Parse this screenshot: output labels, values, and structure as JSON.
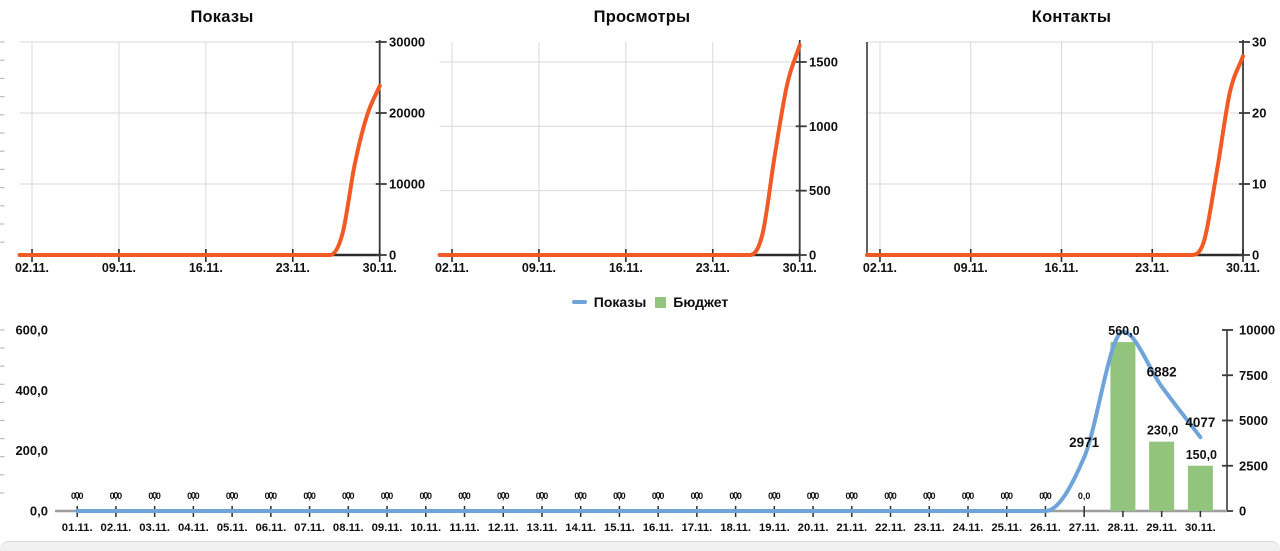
{
  "dates": [
    "01.11.",
    "02.11.",
    "03.11.",
    "04.11.",
    "05.11.",
    "06.11.",
    "07.11.",
    "08.11.",
    "09.11.",
    "10.11.",
    "11.11.",
    "12.11.",
    "13.11.",
    "14.11.",
    "15.11.",
    "16.11.",
    "17.11.",
    "18.11.",
    "19.11.",
    "20.11.",
    "21.11.",
    "22.11.",
    "23.11.",
    "24.11.",
    "25.11.",
    "26.11.",
    "27.11.",
    "28.11.",
    "29.11.",
    "30.11."
  ],
  "chart_data": [
    {
      "type": "line",
      "title": "Показы",
      "x_ticks": [
        "02.11.",
        "09.11.",
        "16.11.",
        "23.11.",
        "30.11."
      ],
      "y_ticks": [
        "0",
        "10000",
        "20000",
        "30000"
      ],
      "ylim": [
        0,
        30000
      ],
      "values": [
        0,
        0,
        0,
        0,
        0,
        0,
        0,
        0,
        0,
        0,
        0,
        0,
        0,
        0,
        0,
        0,
        0,
        0,
        0,
        0,
        0,
        0,
        0,
        0,
        0,
        0,
        2971,
        12871,
        19753,
        23830
      ]
    },
    {
      "type": "line",
      "title": "Просмотры",
      "x_ticks": [
        "02.11.",
        "09.11.",
        "16.11.",
        "23.11.",
        "30.11."
      ],
      "y_ticks": [
        "0",
        "500",
        "1000",
        "1500"
      ],
      "ylim": [
        0,
        1655
      ],
      "values": [
        0,
        0,
        0,
        0,
        0,
        0,
        0,
        0,
        0,
        0,
        0,
        0,
        0,
        0,
        0,
        0,
        0,
        0,
        0,
        0,
        0,
        0,
        0,
        0,
        0,
        0,
        160,
        780,
        1330,
        1630
      ]
    },
    {
      "type": "line",
      "title": "Контакты",
      "x_ticks": [
        "02.11.",
        "09.11.",
        "16.11.",
        "23.11.",
        "30.11."
      ],
      "y_ticks": [
        "0",
        "10",
        "20",
        "30"
      ],
      "ylim": [
        0,
        30
      ],
      "values": [
        0,
        0,
        0,
        0,
        0,
        0,
        0,
        0,
        0,
        0,
        0,
        0,
        0,
        0,
        0,
        0,
        0,
        0,
        0,
        0,
        0,
        0,
        0,
        0,
        0,
        0,
        2,
        12,
        23,
        28
      ]
    },
    {
      "type": "line+bar",
      "left_ticks": [
        "0,0",
        "200,0",
        "400,0",
        "600,0"
      ],
      "right_ticks": [
        "0",
        "2500",
        "5000",
        "7500",
        "10000"
      ],
      "left_lim": [
        0,
        600
      ],
      "right_lim": [
        0,
        10000
      ],
      "series": [
        {
          "name": "Показы",
          "kind": "line",
          "axis": "right",
          "values": [
            0,
            0,
            0,
            0,
            0,
            0,
            0,
            0,
            0,
            0,
            0,
            0,
            0,
            0,
            0,
            0,
            0,
            0,
            0,
            0,
            0,
            0,
            0,
            0,
            0,
            0,
            2971,
            9900,
            6882,
            4077
          ],
          "labels": [
            "0",
            "0",
            "0",
            "0",
            "0",
            "0",
            "0",
            "0",
            "0",
            "0",
            "0",
            "0",
            "0",
            "0",
            "0",
            "0",
            "0",
            "0",
            "0",
            "0",
            "0",
            "0",
            "0",
            "0",
            "0",
            "0",
            "2971",
            "",
            "6882",
            "4077"
          ]
        },
        {
          "name": "Бюджет",
          "kind": "bar",
          "axis": "left",
          "values": [
            0,
            0,
            0,
            0,
            0,
            0,
            0,
            0,
            0,
            0,
            0,
            0,
            0,
            0,
            0,
            0,
            0,
            0,
            0,
            0,
            0,
            0,
            0,
            0,
            0,
            0,
            0,
            560,
            230,
            150
          ],
          "labels": [
            "0,0",
            "0,0",
            "0,0",
            "0,0",
            "0,0",
            "0,0",
            "0,0",
            "0,0",
            "0,0",
            "0,0",
            "0,0",
            "0,0",
            "0,0",
            "0,0",
            "0,0",
            "0,0",
            "0,0",
            "0,0",
            "0,0",
            "0,0",
            "0,0",
            "0,0",
            "0,0",
            "0,0",
            "0,0",
            "0,0",
            "0,0",
            "560,0",
            "230,0",
            "150,0"
          ]
        }
      ]
    }
  ],
  "legend": {
    "pokazy": "Показы",
    "budget": "Бюджет"
  },
  "colors": {
    "orange": "#f15a24",
    "blue": "#6fa4da",
    "green": "#93c47d",
    "grid": "#d9d9d9",
    "axis": "#3a3a3a",
    "baseline": "#9e9e9e",
    "minor_tick": "#bdbdbd",
    "text": "#111111"
  }
}
